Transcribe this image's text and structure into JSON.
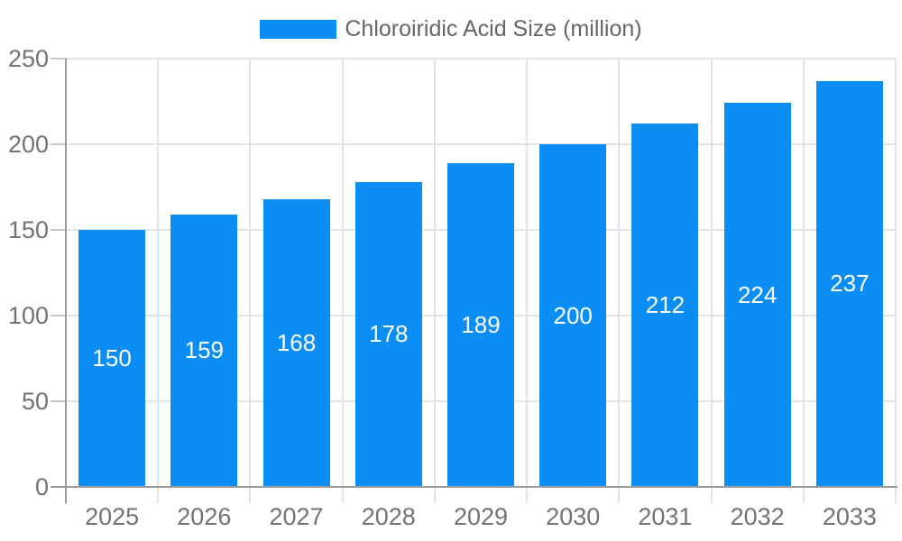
{
  "legend": {
    "label": "Chloroiridic Acid Size (million)"
  },
  "colors": {
    "bar": "#0a8df5",
    "bar_value_label": "#ffffff",
    "axis_line": "#9b9b9b",
    "gridline": "#e4e4e4",
    "tick_label": "#737373",
    "legend_text": "#666666"
  },
  "chart_data": {
    "type": "bar",
    "title": "Chloroiridic Acid Size (million)",
    "categories": [
      "2025",
      "2026",
      "2027",
      "2028",
      "2029",
      "2030",
      "2031",
      "2032",
      "2033"
    ],
    "series": [
      {
        "name": "Chloroiridic Acid Size (million)",
        "values": [
          150,
          159,
          168,
          178,
          189,
          200,
          212,
          224,
          237
        ]
      }
    ],
    "bar_value_labels": [
      "150",
      "159",
      "168",
      "178",
      "189",
      "200",
      "212",
      "224",
      "237"
    ],
    "xlabel": "",
    "ylabel": "",
    "ylim": [
      0,
      250
    ],
    "ytick_step": 50,
    "ytick_labels": [
      "0",
      "50",
      "100",
      "150",
      "200",
      "250"
    ],
    "grid": true,
    "legend_position": "top",
    "value_labels_inside_bars": true
  }
}
